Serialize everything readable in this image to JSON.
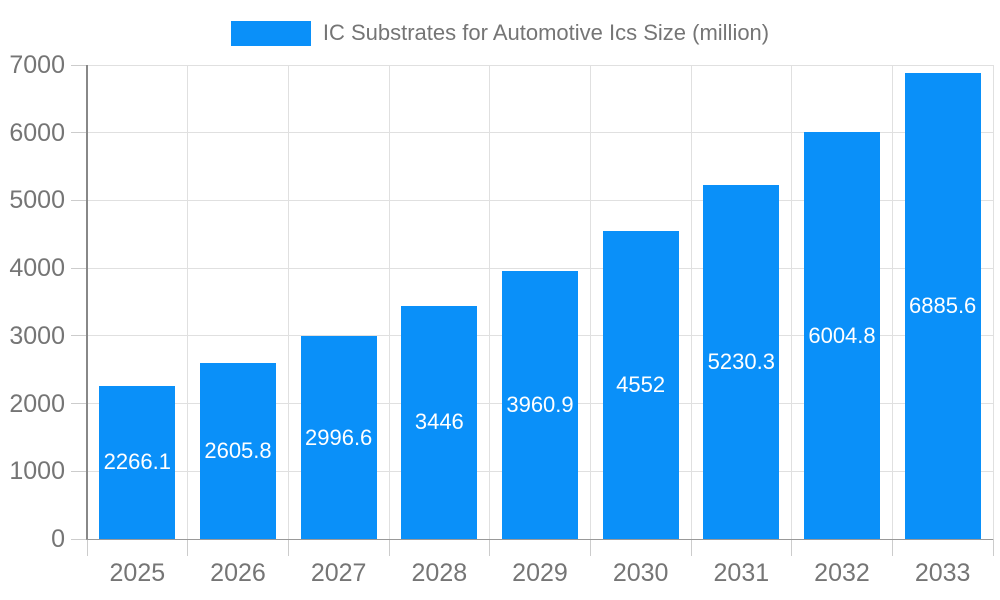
{
  "legend": {
    "label": "IC Substrates for Automotive Ics Size (million)",
    "swatch_color": "#0a90f9"
  },
  "chart_data": {
    "type": "bar",
    "title": "IC Substrates for Automotive Ics Size (million)",
    "categories": [
      "2025",
      "2026",
      "2027",
      "2028",
      "2029",
      "2030",
      "2031",
      "2032",
      "2033"
    ],
    "values": [
      2266.1,
      2605.8,
      2996.6,
      3446,
      3960.9,
      4552,
      5230.3,
      6004.8,
      6885.6
    ],
    "xlabel": "",
    "ylabel": "",
    "ylim": [
      0,
      7000
    ],
    "yticks": [
      0,
      1000,
      2000,
      3000,
      4000,
      5000,
      6000,
      7000
    ],
    "grid": true,
    "legend_position": "top",
    "bar_color": "#0a90f9",
    "bar_label_color": "#ffffff",
    "axis_label_color": "#757575",
    "gridline_color": "#e0e0e0",
    "y_axis_line_color": "#888888",
    "x_axis_line_color": "#999999",
    "tick_color": "#cccccc"
  }
}
